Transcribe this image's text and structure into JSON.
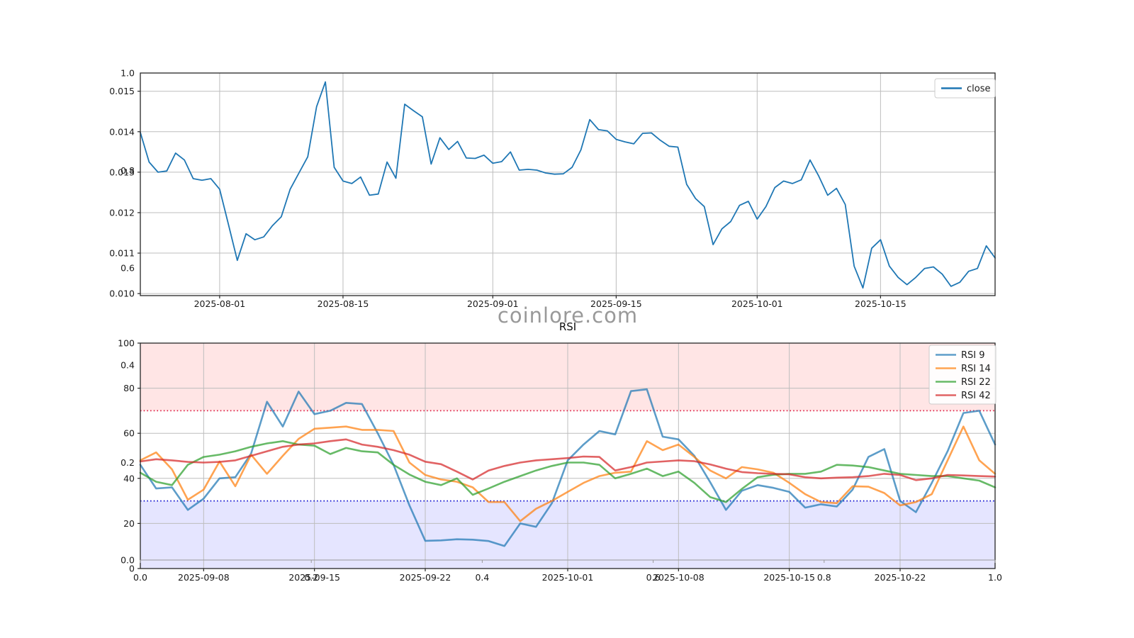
{
  "watermark": {
    "text": "coinlore.com",
    "color": "#999999"
  },
  "secondary_axis": {
    "x_labels": [
      "0.0",
      "0.2",
      "0.4",
      "0.6",
      "0.8",
      "1.0"
    ],
    "y_labels": [
      "1.0",
      "0.8",
      "0.6",
      "0.4",
      "0.2",
      "0.0"
    ]
  },
  "chart_data": [
    {
      "id": "price",
      "type": "line",
      "title": "",
      "xlabel": "",
      "ylabel": "",
      "grid": true,
      "legend": {
        "position": "top-right",
        "entries": [
          {
            "label": "close",
            "color": "#1f77b4"
          }
        ]
      },
      "ylim": [
        0.00995,
        0.01545
      ],
      "y_ticks": [
        {
          "v": 0.01,
          "label": "0.010"
        },
        {
          "v": 0.011,
          "label": "0.011"
        },
        {
          "v": 0.012,
          "label": "0.012"
        },
        {
          "v": 0.013,
          "label": "0.013"
        },
        {
          "v": 0.014,
          "label": "0.014"
        },
        {
          "v": 0.015,
          "label": "0.015"
        }
      ],
      "x_ticks": [
        "2025-08-01",
        "2025-08-15",
        "2025-09-01",
        "2025-09-15",
        "2025-10-01",
        "2025-10-15"
      ],
      "x": [
        "2025-07-23",
        "2025-07-24",
        "2025-07-25",
        "2025-07-26",
        "2025-07-27",
        "2025-07-28",
        "2025-07-29",
        "2025-07-30",
        "2025-07-31",
        "2025-08-01",
        "2025-08-02",
        "2025-08-03",
        "2025-08-04",
        "2025-08-05",
        "2025-08-06",
        "2025-08-07",
        "2025-08-08",
        "2025-08-09",
        "2025-08-10",
        "2025-08-11",
        "2025-08-12",
        "2025-08-13",
        "2025-08-14",
        "2025-08-15",
        "2025-08-16",
        "2025-08-17",
        "2025-08-18",
        "2025-08-19",
        "2025-08-20",
        "2025-08-21",
        "2025-08-22",
        "2025-08-23",
        "2025-08-24",
        "2025-08-25",
        "2025-08-26",
        "2025-08-27",
        "2025-08-28",
        "2025-08-29",
        "2025-08-30",
        "2025-08-31",
        "2025-09-01",
        "2025-09-02",
        "2025-09-03",
        "2025-09-04",
        "2025-09-05",
        "2025-09-06",
        "2025-09-07",
        "2025-09-08",
        "2025-09-09",
        "2025-09-10",
        "2025-09-11",
        "2025-09-12",
        "2025-09-13",
        "2025-09-14",
        "2025-09-15",
        "2025-09-16",
        "2025-09-17",
        "2025-09-18",
        "2025-09-19",
        "2025-09-20",
        "2025-09-21",
        "2025-09-22",
        "2025-09-23",
        "2025-09-24",
        "2025-09-25",
        "2025-09-26",
        "2025-09-27",
        "2025-09-28",
        "2025-09-29",
        "2025-09-30",
        "2025-10-01",
        "2025-10-02",
        "2025-10-03",
        "2025-10-04",
        "2025-10-05",
        "2025-10-06",
        "2025-10-07",
        "2025-10-08",
        "2025-10-09",
        "2025-10-10",
        "2025-10-11",
        "2025-10-12",
        "2025-10-13",
        "2025-10-14",
        "2025-10-15",
        "2025-10-16",
        "2025-10-17",
        "2025-10-18",
        "2025-10-19",
        "2025-10-20",
        "2025-10-21",
        "2025-10-22",
        "2025-10-23",
        "2025-10-24",
        "2025-10-25",
        "2025-10-26",
        "2025-10-27",
        "2025-10-28"
      ],
      "series": [
        {
          "name": "close",
          "color": "#1f77b4",
          "width": 1.8,
          "values": [
            0.01398,
            0.01325,
            0.013,
            0.01303,
            0.01347,
            0.0133,
            0.01284,
            0.0128,
            0.01284,
            0.01258,
            0.01171,
            0.01082,
            0.01148,
            0.01133,
            0.0114,
            0.01168,
            0.0119,
            0.01258,
            0.01298,
            0.01338,
            0.01462,
            0.01523,
            0.01312,
            0.01278,
            0.01272,
            0.01288,
            0.01243,
            0.01246,
            0.01325,
            0.01285,
            0.01468,
            0.01452,
            0.01437,
            0.0132,
            0.01385,
            0.01356,
            0.01376,
            0.01335,
            0.01334,
            0.01342,
            0.01322,
            0.01326,
            0.0135,
            0.01305,
            0.01307,
            0.01305,
            0.01298,
            0.01295,
            0.01296,
            0.01312,
            0.01355,
            0.0143,
            0.01405,
            0.01402,
            0.01381,
            0.01375,
            0.0137,
            0.01396,
            0.01397,
            0.01379,
            0.01364,
            0.01362,
            0.0127,
            0.01235,
            0.01215,
            0.01121,
            0.0116,
            0.01178,
            0.01218,
            0.01228,
            0.01184,
            0.01215,
            0.01262,
            0.01278,
            0.01272,
            0.01281,
            0.0133,
            0.0129,
            0.01243,
            0.0126,
            0.0122,
            0.01068,
            0.01014,
            0.01112,
            0.01133,
            0.01068,
            0.0104,
            0.01022,
            0.0104,
            0.01062,
            0.01066,
            0.01048,
            0.01018,
            0.01028,
            0.01055,
            0.01062,
            0.01118,
            0.01088
          ]
        }
      ]
    },
    {
      "id": "rsi",
      "type": "line",
      "title": "RSI",
      "xlabel": "",
      "ylabel": "",
      "grid": true,
      "legend": {
        "position": "top-right",
        "entries": [
          {
            "label": "RSI 9",
            "color": "rgba(31,119,180,0.72)"
          },
          {
            "label": "RSI 14",
            "color": "rgba(255,127,14,0.72)"
          },
          {
            "label": "RSI 22",
            "color": "rgba(44,160,44,0.72)"
          },
          {
            "label": "RSI 42",
            "color": "rgba(214,39,40,0.72)"
          }
        ]
      },
      "ylim": [
        0,
        100
      ],
      "y_ticks": [
        {
          "v": 0,
          "label": "0"
        },
        {
          "v": 20,
          "label": "20"
        },
        {
          "v": 40,
          "label": "40"
        },
        {
          "v": 60,
          "label": "60"
        },
        {
          "v": 80,
          "label": "80"
        },
        {
          "v": 100,
          "label": "100"
        }
      ],
      "x_ticks": [
        "2025-09-08",
        "2025-09-15",
        "2025-09-22",
        "2025-10-01",
        "2025-10-08",
        "2025-10-15",
        "2025-10-22"
      ],
      "bands": [
        {
          "from": 70,
          "to": 100,
          "color": "rgba(255,0,0,0.10)",
          "name": "overbought-band"
        },
        {
          "from": 0,
          "to": 30,
          "color": "rgba(0,0,255,0.10)",
          "name": "oversold-band"
        }
      ],
      "thresholds": [
        {
          "value": 70,
          "color": "#dc143c",
          "name": "overbought-line"
        },
        {
          "value": 30,
          "color": "#0000cd",
          "name": "oversold-line"
        }
      ],
      "x": [
        "2025-09-04",
        "2025-09-05",
        "2025-09-06",
        "2025-09-07",
        "2025-09-08",
        "2025-09-09",
        "2025-09-10",
        "2025-09-11",
        "2025-09-12",
        "2025-09-13",
        "2025-09-14",
        "2025-09-15",
        "2025-09-16",
        "2025-09-17",
        "2025-09-18",
        "2025-09-19",
        "2025-09-20",
        "2025-09-21",
        "2025-09-22",
        "2025-09-23",
        "2025-09-24",
        "2025-09-25",
        "2025-09-26",
        "2025-09-27",
        "2025-09-28",
        "2025-09-29",
        "2025-09-30",
        "2025-10-01",
        "2025-10-02",
        "2025-10-03",
        "2025-10-04",
        "2025-10-05",
        "2025-10-06",
        "2025-10-07",
        "2025-10-08",
        "2025-10-09",
        "2025-10-10",
        "2025-10-11",
        "2025-10-12",
        "2025-10-13",
        "2025-10-14",
        "2025-10-15",
        "2025-10-16",
        "2025-10-17",
        "2025-10-18",
        "2025-10-19",
        "2025-10-20",
        "2025-10-21",
        "2025-10-22",
        "2025-10-23",
        "2025-10-24",
        "2025-10-25",
        "2025-10-26",
        "2025-10-27",
        "2025-10-28"
      ],
      "series": [
        {
          "name": "RSI 9",
          "color": "rgba(31,119,180,0.72)",
          "width": 2.6,
          "values": [
            46,
            35.5,
            36,
            26,
            31,
            40,
            40.5,
            51,
            74,
            63,
            78.5,
            68.5,
            70,
            73.5,
            73,
            60,
            46,
            28,
            12.3,
            12.5,
            13,
            12.8,
            12.2,
            10,
            20,
            18.5,
            29,
            48,
            55,
            61,
            59.5,
            78.7,
            79.5,
            58.5,
            57.3,
            50,
            38.3,
            26,
            34.5,
            37,
            35.8,
            34,
            27,
            28.5,
            27.5,
            35,
            49.5,
            53,
            30,
            25,
            38,
            52,
            69,
            70,
            55
          ]
        },
        {
          "name": "RSI 14",
          "color": "rgba(255,127,14,0.72)",
          "width": 2.6,
          "values": [
            48,
            51.5,
            44,
            30.5,
            35,
            47.5,
            36.5,
            50.5,
            42,
            50,
            57.5,
            62,
            62.5,
            63,
            61.5,
            61.5,
            61,
            47,
            41.5,
            39.5,
            38.5,
            36,
            29.5,
            29.5,
            21,
            26.5,
            30,
            34,
            38,
            41,
            42.5,
            43,
            56.5,
            52.5,
            55,
            49.5,
            43.5,
            40,
            45,
            44,
            42.5,
            38,
            33,
            29.5,
            29,
            36.5,
            36.3,
            33.5,
            28,
            29.5,
            33,
            48,
            63,
            48,
            42
          ]
        },
        {
          "name": "RSI 22",
          "color": "rgba(44,160,44,0.72)",
          "width": 2.6,
          "values": [
            42.5,
            38.5,
            37,
            46,
            49.5,
            50.5,
            52,
            54,
            55.5,
            56.5,
            55,
            54.5,
            50.8,
            53.5,
            52,
            51.5,
            46,
            41.7,
            38.5,
            37,
            40,
            32.7,
            35.5,
            38.5,
            41,
            43.5,
            45.5,
            47,
            47,
            46,
            40,
            42,
            44.3,
            41,
            43,
            38,
            31.7,
            29.5,
            35.3,
            40.5,
            41.6,
            42,
            42,
            43,
            46,
            45.7,
            45,
            43.5,
            42,
            41.5,
            41,
            41,
            40,
            39,
            36
          ]
        },
        {
          "name": "RSI 42",
          "color": "rgba(214,39,40,0.72)",
          "width": 2.6,
          "values": [
            47.5,
            48.5,
            48,
            47.3,
            47,
            47.3,
            48,
            50,
            52,
            54,
            55,
            55.5,
            56.5,
            57.3,
            55,
            54,
            52.5,
            50.5,
            47.4,
            46.3,
            43,
            39.5,
            43.5,
            45.5,
            47,
            48,
            48.5,
            49,
            49.7,
            49.5,
            43.5,
            45,
            47,
            47.5,
            48,
            47.6,
            46.2,
            44.3,
            42.8,
            42.3,
            42,
            41.8,
            40.5,
            40,
            40.3,
            40.5,
            41,
            42,
            41.5,
            39.2,
            40,
            41.5,
            41.3,
            41,
            40.8
          ]
        }
      ]
    }
  ]
}
